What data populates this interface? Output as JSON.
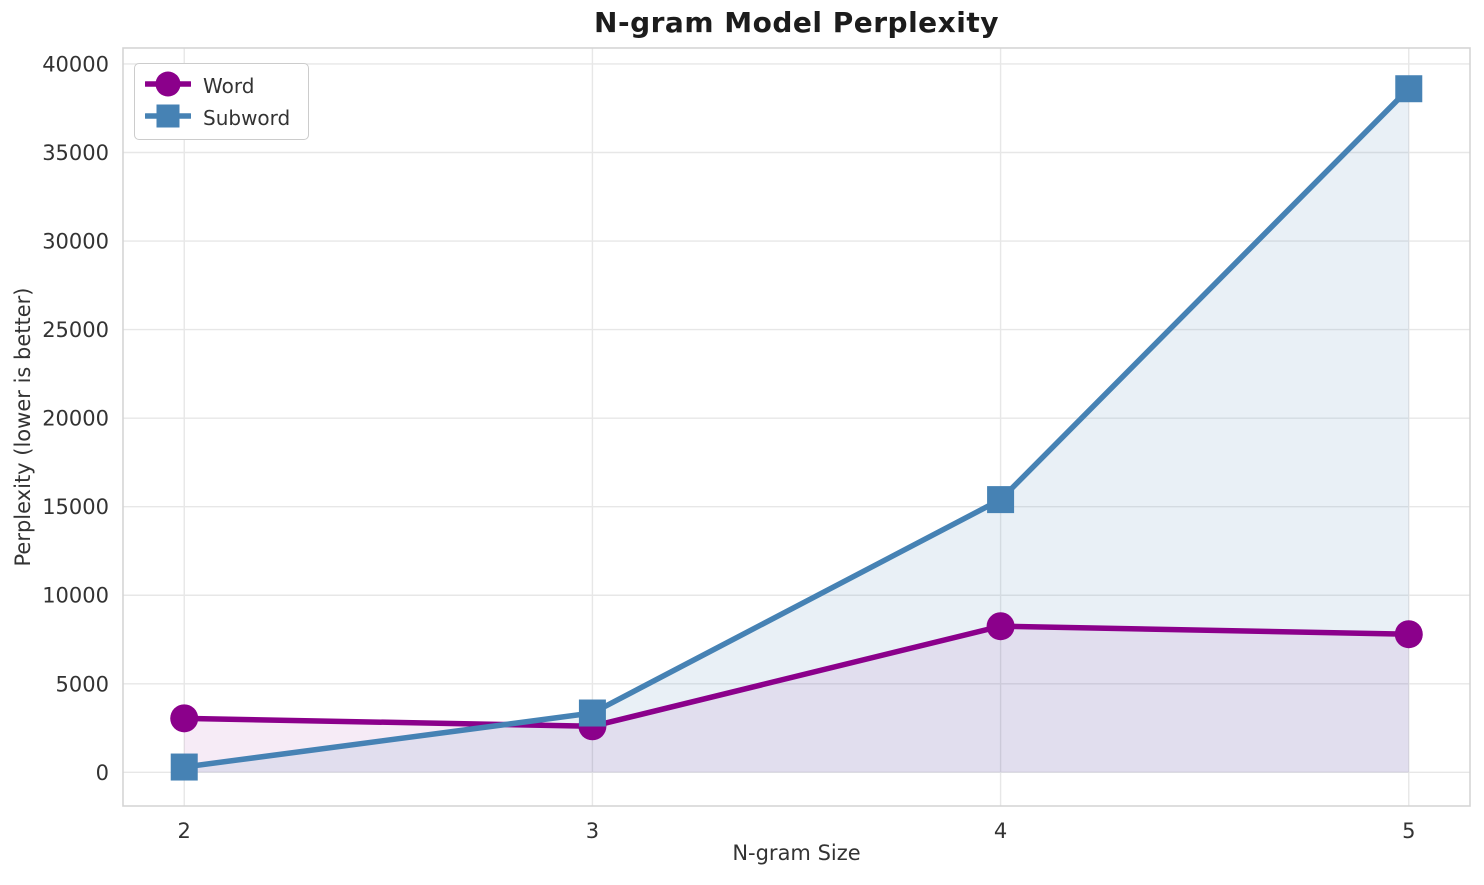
{
  "chart_data": {
    "type": "line",
    "title": "N-gram Model Perplexity",
    "xlabel": "N-gram Size",
    "ylabel": "Perplexity (lower is better)",
    "categories": [
      2,
      3,
      4,
      5
    ],
    "yticks": [
      0,
      5000,
      10000,
      15000,
      20000,
      25000,
      30000,
      35000,
      40000
    ],
    "ylim": [
      0,
      40000
    ],
    "grid": true,
    "legend_position": "upper left",
    "series": [
      {
        "name": "Word",
        "marker": "circle",
        "color": "#8B008B",
        "fill_alpha": 0.08,
        "values": [
          3050,
          2600,
          8250,
          7800
        ]
      },
      {
        "name": "Subword",
        "marker": "square",
        "color": "#4682B4",
        "fill_alpha": 0.12,
        "values": [
          300,
          3350,
          15400,
          38600
        ]
      }
    ]
  }
}
